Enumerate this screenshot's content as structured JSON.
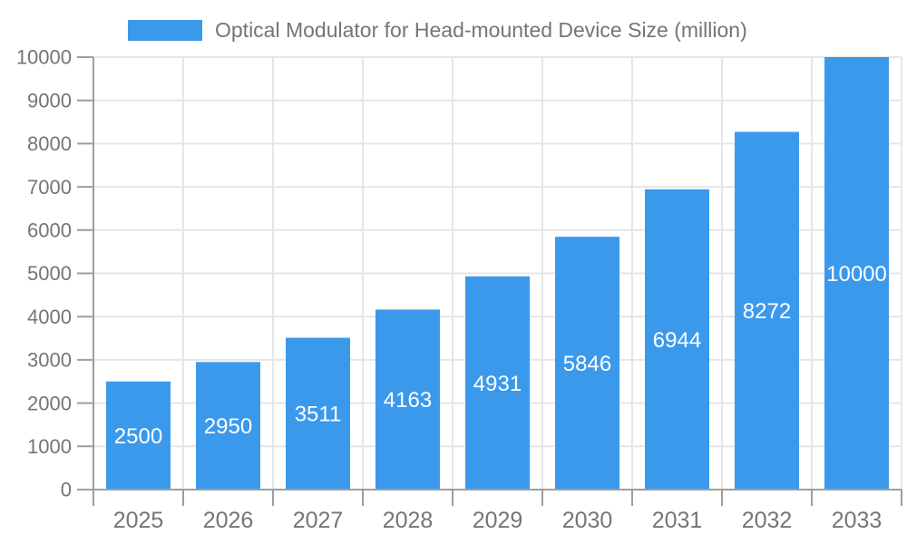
{
  "legend": {
    "position": "top",
    "label": "Optical Modulator for Head-mounted Device Size (million)"
  },
  "chart_data": {
    "type": "bar",
    "title": "Optical Modulator for Head-mounted Device Size (million)",
    "categories": [
      "2025",
      "2026",
      "2027",
      "2028",
      "2029",
      "2030",
      "2031",
      "2032",
      "2033"
    ],
    "series": [
      {
        "name": "Optical Modulator for Head-mounted Device Size (million)",
        "values": [
          2500,
          2950,
          3511,
          4163,
          4931,
          5846,
          6944,
          8272,
          10000
        ]
      }
    ],
    "bar_value_labels": [
      "2500",
      "2950",
      "3511",
      "4163",
      "4931",
      "5846",
      "6944",
      "8272",
      "10000"
    ],
    "xlabel": "",
    "ylabel": "",
    "ylim": [
      0,
      10000
    ],
    "y_tick_step": 1000,
    "y_tick_labels": [
      "0",
      "1000",
      "2000",
      "3000",
      "4000",
      "5000",
      "6000",
      "7000",
      "8000",
      "9000",
      "10000"
    ],
    "grid": true,
    "legend_position": "top",
    "colors": {
      "bar": "#3B99EC",
      "bar_value_text": "#FFFFFF",
      "axis": "#9E9E9E",
      "grid": "#E6E6E6",
      "tick_label": "#757575",
      "legend_text": "#757575",
      "background": "#FFFFFF"
    }
  }
}
